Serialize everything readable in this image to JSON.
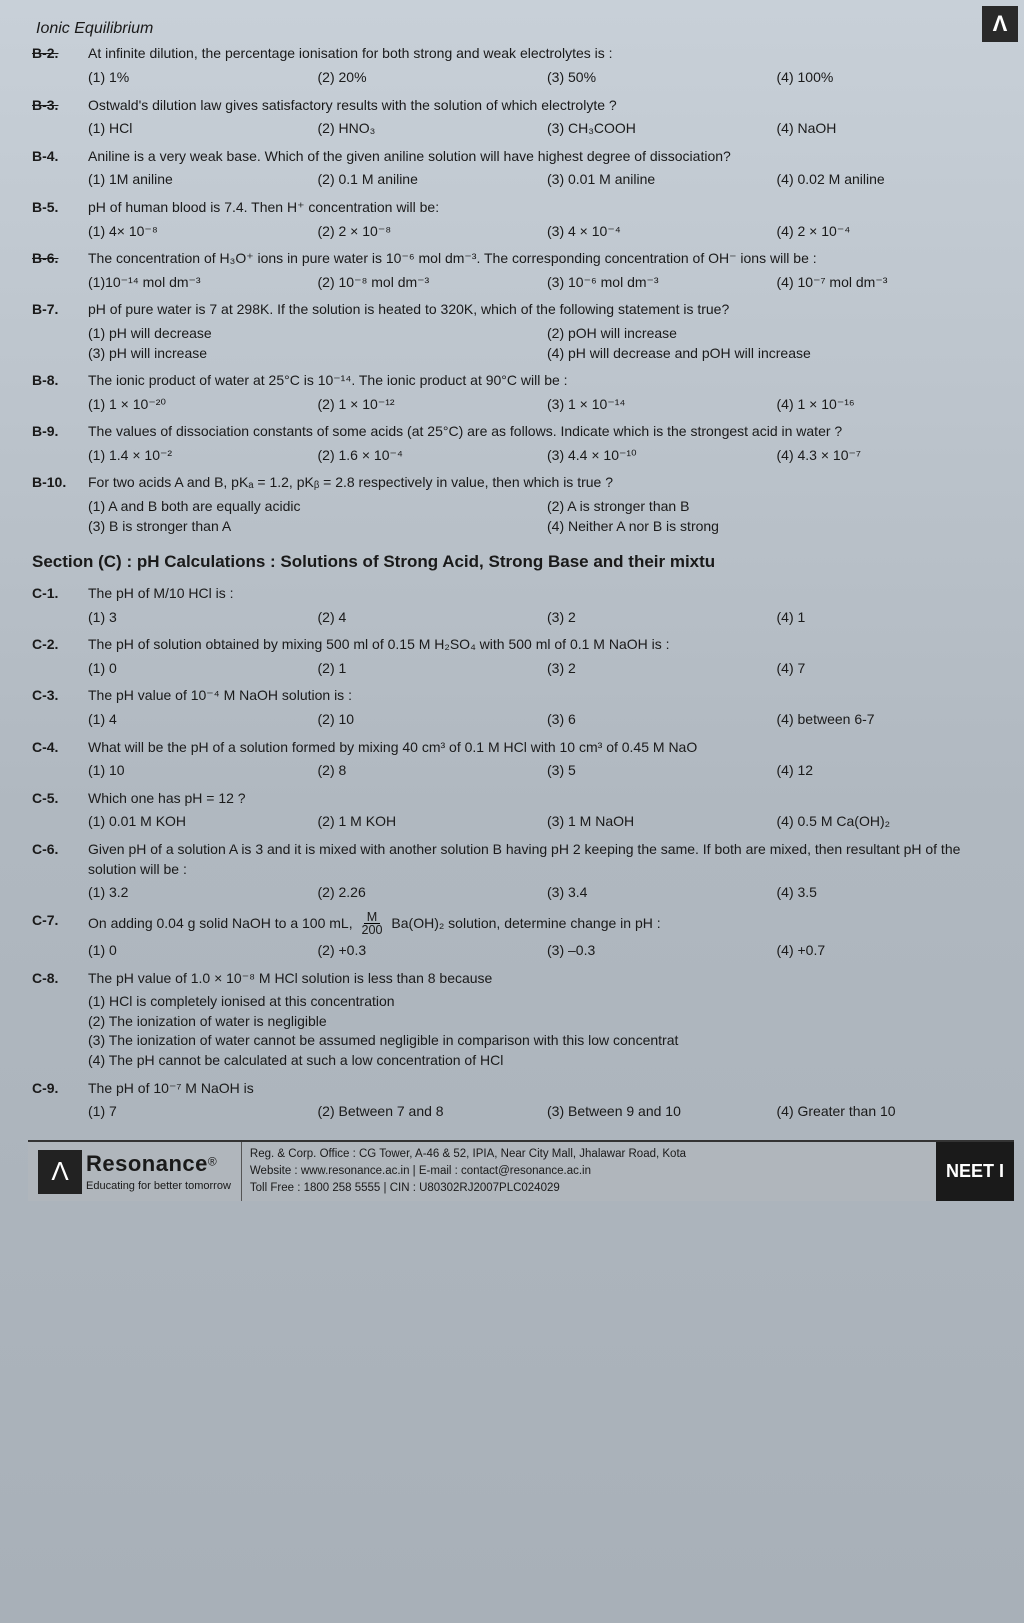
{
  "page": {
    "title": "Ionic Equilibrium",
    "corner": "Λ"
  },
  "section_c_header": "Section (C) : pH Calculations : Solutions of Strong Acid, Strong Base and their mixtu",
  "questions": [
    {
      "num": "B-2.",
      "strike": true,
      "text": "At infinite dilution, the percentage ionisation for both strong and weak electrolytes is :",
      "opts": [
        "(1) 1%",
        "(2) 20%",
        "(3) 50%",
        "(4) 100%"
      ]
    },
    {
      "num": "B-3.",
      "strike": true,
      "text": "Ostwald's dilution law gives satisfactory results with the solution of which electrolyte ?",
      "opts": [
        "(1) HCl",
        "(2) HNO₃",
        "(3) CH₃COOH",
        "(4) NaOH"
      ]
    },
    {
      "num": "B-4.",
      "text": "Aniline is a very weak base. Which of the given aniline solution will have highest degree of dissociation?",
      "opts": [
        "(1) 1M aniline",
        "(2) 0.1 M aniline",
        "(3) 0.01 M aniline",
        "(4) 0.02 M aniline"
      ]
    },
    {
      "num": "B-5.",
      "text": "pH of human blood is 7.4. Then H⁺ concentration will be:",
      "opts": [
        "(1) 4× 10⁻⁸",
        "(2) 2 × 10⁻⁸",
        "(3) 4 × 10⁻⁴",
        "(4) 2 × 10⁻⁴"
      ]
    },
    {
      "num": "B-6.",
      "strike": true,
      "text": "The concentration of H₃O⁺ ions in pure water is 10⁻⁶ mol dm⁻³. The corresponding concentration of OH⁻ ions will be :",
      "opts": [
        "(1)10⁻¹⁴ mol dm⁻³",
        "(2) 10⁻⁸ mol dm⁻³",
        "(3) 10⁻⁶ mol dm⁻³",
        "(4) 10⁻⁷ mol dm⁻³"
      ]
    },
    {
      "num": "B-7.",
      "text": "pH of pure water is 7 at 298K. If the solution is heated to 320K, which of the following statement is true?",
      "opts": [
        "(1) pH will decrease",
        "(2) pOH will increase",
        "(3) pH will increase",
        "(4) pH will decrease and pOH will increase"
      ],
      "wide": true
    },
    {
      "num": "B-8.",
      "text": "The ionic product of water at 25°C is 10⁻¹⁴. The ionic product at 90°C will be :",
      "opts": [
        "(1) 1 × 10⁻²⁰",
        "(2) 1 × 10⁻¹²",
        "(3) 1 × 10⁻¹⁴",
        "(4) 1 × 10⁻¹⁶"
      ]
    },
    {
      "num": "B-9.",
      "text": "The values of dissociation constants of some acids (at 25°C) are as follows. Indicate which is the strongest acid in water ?",
      "opts": [
        "(1) 1.4 × 10⁻²",
        "(2) 1.6 × 10⁻⁴",
        "(3) 4.4 × 10⁻¹⁰",
        "(4) 4.3 × 10⁻⁷"
      ]
    },
    {
      "num": "B-10.",
      "text": "For two acids A and B, pKₐ = 1.2, pKᵦ = 2.8 respectively in value, then which is true ?",
      "opts": [
        "(1) A and B both are equally acidic",
        "(2) A is stronger than B",
        "(3) B is stronger than A",
        "(4) Neither A nor B is strong"
      ],
      "wide": true
    }
  ],
  "section_c": [
    {
      "num": "C-1.",
      "text": "The pH of M/10 HCl is :",
      "opts": [
        "(1) 3",
        "(2) 4",
        "(3) 2",
        "(4) 1"
      ]
    },
    {
      "num": "C-2.",
      "text": "The pH of solution obtained by mixing 500 ml of 0.15 M H₂SO₄ with 500 ml of 0.1 M NaOH is :",
      "opts": [
        "(1) 0",
        "(2) 1",
        "(3) 2",
        "(4) 7"
      ]
    },
    {
      "num": "C-3.",
      "text": "The pH value of 10⁻⁴ M NaOH solution is :",
      "opts": [
        "(1) 4",
        "(2) 10",
        "(3) 6",
        "(4) between 6-7"
      ]
    },
    {
      "num": "C-4.",
      "text": "What will be the pH of a solution formed by mixing 40 cm³ of 0.1 M HCl with 10 cm³ of 0.45 M NaO",
      "opts": [
        "(1) 10",
        "(2) 8",
        "(3) 5",
        "(4) 12"
      ]
    },
    {
      "num": "C-5.",
      "text": "Which one has pH = 12 ?",
      "opts": [
        "(1) 0.01 M KOH",
        "(2) 1 M KOH",
        "(3) 1 M NaOH",
        "(4) 0.5 M Ca(OH)₂"
      ]
    },
    {
      "num": "C-6.",
      "text": "Given pH of a solution A is 3 and it is mixed with another solution B having pH 2 keeping the same. If both are mixed, then resultant pH of the solution will be :",
      "opts": [
        "(1) 3.2",
        "(2) 2.26",
        "(3) 3.4",
        "(4) 3.5"
      ]
    },
    {
      "num": "C-7.",
      "text_html": "On adding 0.04 g solid NaOH to a 100 mL, <span class='frac'><span class='num'>M</span><span class='den'>200</span></span> Ba(OH)₂ solution, determine change in pH :",
      "opts": [
        "(1) 0",
        "(2) +0.3",
        "(3) –0.3",
        "(4) +0.7"
      ]
    },
    {
      "num": "C-8.",
      "text": "The pH value of 1.0 × 10⁻⁸ M HCl solution is less than 8 because",
      "opts": [
        "(1) HCl is completely ionised at this concentration",
        "(2) The ionization of water is negligible",
        "(3) The ionization of water cannot be assumed negligible in comparison with this low concentrat",
        "(4) The pH cannot be calculated at such a low concentration of HCl"
      ],
      "full": true
    },
    {
      "num": "C-9.",
      "text": "The pH of 10⁻⁷ M NaOH is",
      "opts": [
        "(1) 7",
        "(2) Between 7 and 8",
        "(3) Between 9 and 10",
        "(4) Greater than 10"
      ]
    }
  ],
  "footer": {
    "logo_name": "Resonance",
    "logo_tag": "Educating for better tomorrow",
    "line1": "Reg. & Corp. Office : CG Tower, A-46 & 52, IPIA, Near City Mall, Jhalawar Road, Kota",
    "line2": "Website : www.resonance.ac.in | E-mail : contact@resonance.ac.in",
    "line3": "Toll Free : 1800 258 5555 | CIN : U80302RJ2007PLC024029",
    "neet": "NEET I"
  }
}
